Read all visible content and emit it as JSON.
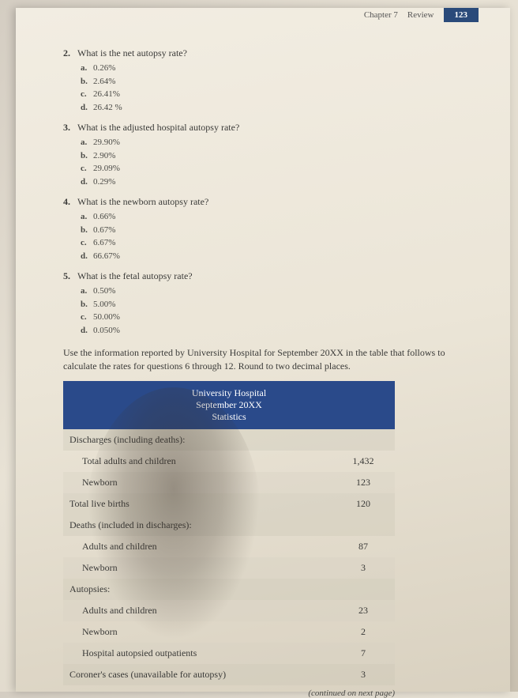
{
  "header": {
    "chapter": "Chapter 7",
    "section": "Review",
    "page_number": "123"
  },
  "questions": [
    {
      "number": "2.",
      "stem": "What is the net autopsy rate?",
      "options": [
        {
          "letter": "a.",
          "text": "0.26%"
        },
        {
          "letter": "b.",
          "text": "2.64%"
        },
        {
          "letter": "c.",
          "text": "26.41%"
        },
        {
          "letter": "d.",
          "text": "26.42 %"
        }
      ]
    },
    {
      "number": "3.",
      "stem": "What is the adjusted hospital autopsy rate?",
      "options": [
        {
          "letter": "a.",
          "text": "29.90%"
        },
        {
          "letter": "b.",
          "text": "2.90%"
        },
        {
          "letter": "c.",
          "text": "29.09%"
        },
        {
          "letter": "d.",
          "text": "0.29%"
        }
      ]
    },
    {
      "number": "4.",
      "stem": "What is the newborn autopsy rate?",
      "options": [
        {
          "letter": "a.",
          "text": "0.66%"
        },
        {
          "letter": "b.",
          "text": "0.67%"
        },
        {
          "letter": "c.",
          "text": "6.67%"
        },
        {
          "letter": "d.",
          "text": "66.67%"
        }
      ]
    },
    {
      "number": "5.",
      "stem": "What is the fetal autopsy rate?",
      "options": [
        {
          "letter": "a.",
          "text": "0.50%"
        },
        {
          "letter": "b.",
          "text": "5.00%"
        },
        {
          "letter": "c.",
          "text": "50.00%"
        },
        {
          "letter": "d.",
          "text": "0.050%"
        }
      ]
    }
  ],
  "instructions": "Use the information reported by University Hospital for September 20XX in the table that follows to calculate the rates for questions 6 through 12. Round to two decimal places.",
  "table": {
    "title_line1": "University Hospital",
    "title_line2": "September 20XX",
    "title_line3": "Statistics",
    "header_bg": "#2a4a8a",
    "rows": [
      {
        "type": "section",
        "label": "Discharges (including deaths):",
        "value": ""
      },
      {
        "type": "indent",
        "label": "Total adults and children",
        "value": "1,432"
      },
      {
        "type": "indent",
        "label": "Newborn",
        "value": "123"
      },
      {
        "type": "section",
        "label": "Total live births",
        "value": "120"
      },
      {
        "type": "section",
        "label": "Deaths (included in discharges):",
        "value": ""
      },
      {
        "type": "indent",
        "label": "Adults and children",
        "value": "87"
      },
      {
        "type": "indent",
        "label": "Newborn",
        "value": "3"
      },
      {
        "type": "section",
        "label": "Autopsies:",
        "value": ""
      },
      {
        "type": "indent",
        "label": "Adults and children",
        "value": "23"
      },
      {
        "type": "indent",
        "label": "Newborn",
        "value": "2"
      },
      {
        "type": "indent",
        "label": "Hospital autopsied outpatients",
        "value": "7"
      },
      {
        "type": "section",
        "label": "Coroner's cases (unavailable for autopsy)",
        "value": "3"
      }
    ],
    "continued": "(continued on next page)"
  }
}
